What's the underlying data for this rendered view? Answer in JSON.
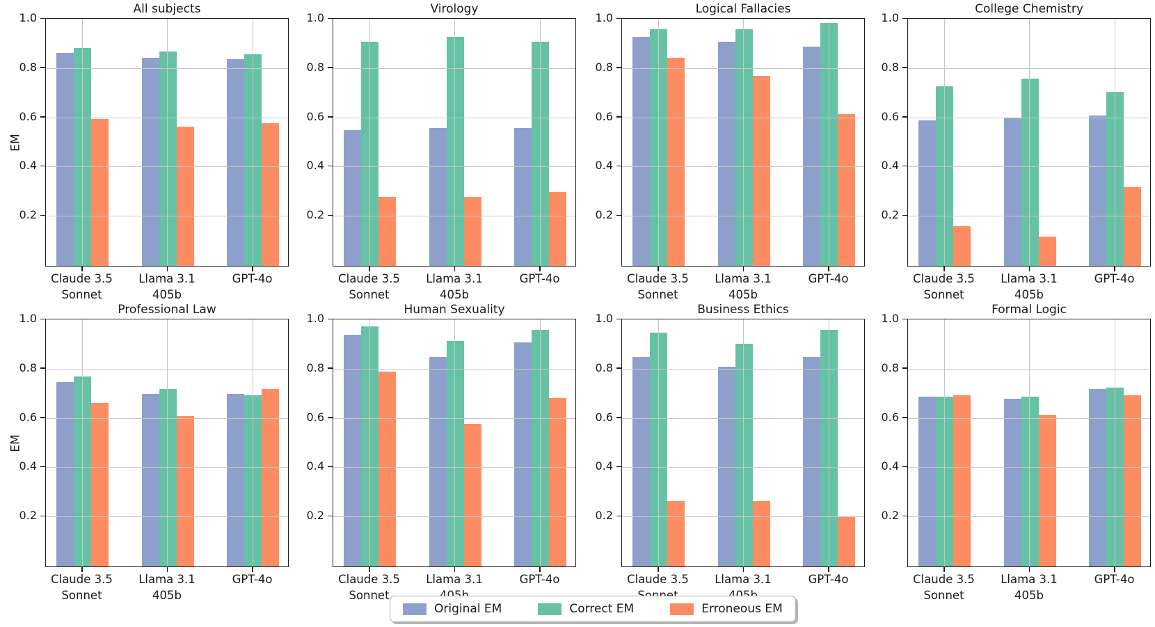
{
  "figure": {
    "ylabel": "EM",
    "ytick_labels": [
      "1.0",
      "0.8",
      "0.6",
      "0.4",
      "0.2"
    ],
    "ytick_values": [
      1.0,
      0.8,
      0.6,
      0.4,
      0.2
    ],
    "models": [
      {
        "lines": [
          "Claude 3.5",
          "Sonnet"
        ]
      },
      {
        "lines": [
          "Llama 3.1",
          "405b"
        ]
      },
      {
        "lines": [
          "GPT-4o"
        ]
      }
    ]
  },
  "legend": {
    "items": [
      {
        "label": "Original EM",
        "color": "#8da0cb"
      },
      {
        "label": "Correct EM",
        "color": "#66c2a5"
      },
      {
        "label": "Erroneous EM",
        "color": "#fc8d62"
      }
    ]
  },
  "chart_data": [
    {
      "type": "bar",
      "title": "All subjects",
      "categories": [
        "Claude 3.5 Sonnet",
        "Llama 3.1 405b",
        "GPT-4o"
      ],
      "series": [
        {
          "name": "Original EM",
          "values": [
            0.865,
            0.845,
            0.84
          ]
        },
        {
          "name": "Correct EM",
          "values": [
            0.885,
            0.87,
            0.86
          ]
        },
        {
          "name": "Erroneous EM",
          "values": [
            0.595,
            0.565,
            0.58
          ]
        }
      ],
      "ylabel": "EM",
      "ylim": [
        0,
        1.0
      ],
      "yticks": [
        0.2,
        0.4,
        0.6,
        0.8,
        1.0
      ],
      "grid": true,
      "legend_position": "bottom-center"
    },
    {
      "type": "bar",
      "title": "Virology",
      "categories": [
        "Claude 3.5 Sonnet",
        "Llama 3.1 405b",
        "GPT-4o"
      ],
      "series": [
        {
          "name": "Original EM",
          "values": [
            0.55,
            0.56,
            0.56
          ]
        },
        {
          "name": "Correct EM",
          "values": [
            0.91,
            0.93,
            0.91
          ]
        },
        {
          "name": "Erroneous EM",
          "values": [
            0.28,
            0.28,
            0.3
          ]
        }
      ],
      "ylabel": "",
      "ylim": [
        0,
        1.0
      ],
      "yticks": [
        0.2,
        0.4,
        0.6,
        0.8,
        1.0
      ],
      "grid": true
    },
    {
      "type": "bar",
      "title": "Logical Fallacies",
      "categories": [
        "Claude 3.5 Sonnet",
        "Llama 3.1 405b",
        "GPT-4o"
      ],
      "series": [
        {
          "name": "Original EM",
          "values": [
            0.93,
            0.91,
            0.89
          ]
        },
        {
          "name": "Correct EM",
          "values": [
            0.96,
            0.96,
            0.985
          ]
        },
        {
          "name": "Erroneous EM",
          "values": [
            0.845,
            0.77,
            0.615
          ]
        }
      ],
      "ylabel": "",
      "ylim": [
        0,
        1.0
      ],
      "yticks": [
        0.2,
        0.4,
        0.6,
        0.8,
        1.0
      ],
      "grid": true
    },
    {
      "type": "bar",
      "title": "College Chemistry",
      "categories": [
        "Claude 3.5 Sonnet",
        "Llama 3.1 405b",
        "GPT-4o"
      ],
      "series": [
        {
          "name": "Original EM",
          "values": [
            0.59,
            0.6,
            0.61
          ]
        },
        {
          "name": "Correct EM",
          "values": [
            0.73,
            0.76,
            0.705
          ]
        },
        {
          "name": "Erroneous EM",
          "values": [
            0.16,
            0.12,
            0.32
          ]
        }
      ],
      "ylabel": "",
      "ylim": [
        0,
        1.0
      ],
      "yticks": [
        0.2,
        0.4,
        0.6,
        0.8,
        1.0
      ],
      "grid": true
    },
    {
      "type": "bar",
      "title": "Professional Law",
      "categories": [
        "Claude 3.5 Sonnet",
        "Llama 3.1 405b",
        "GPT-4o"
      ],
      "series": [
        {
          "name": "Original EM",
          "values": [
            0.75,
            0.7,
            0.7
          ]
        },
        {
          "name": "Correct EM",
          "values": [
            0.77,
            0.72,
            0.695
          ]
        },
        {
          "name": "Erroneous EM",
          "values": [
            0.665,
            0.61,
            0.72
          ]
        }
      ],
      "ylabel": "EM",
      "ylim": [
        0,
        1.0
      ],
      "yticks": [
        0.2,
        0.4,
        0.6,
        0.8,
        1.0
      ],
      "grid": true
    },
    {
      "type": "bar",
      "title": "Human Sexuality",
      "categories": [
        "Claude 3.5 Sonnet",
        "Llama 3.1 405b",
        "GPT-4o"
      ],
      "series": [
        {
          "name": "Original EM",
          "values": [
            0.94,
            0.85,
            0.91
          ]
        },
        {
          "name": "Correct EM",
          "values": [
            0.975,
            0.915,
            0.96
          ]
        },
        {
          "name": "Erroneous EM",
          "values": [
            0.79,
            0.58,
            0.685
          ]
        }
      ],
      "ylabel": "",
      "ylim": [
        0,
        1.0
      ],
      "yticks": [
        0.2,
        0.4,
        0.6,
        0.8,
        1.0
      ],
      "grid": true
    },
    {
      "type": "bar",
      "title": "Business Ethics",
      "categories": [
        "Claude 3.5 Sonnet",
        "Llama 3.1 405b",
        "GPT-4o"
      ],
      "series": [
        {
          "name": "Original EM",
          "values": [
            0.85,
            0.81,
            0.85
          ]
        },
        {
          "name": "Correct EM",
          "values": [
            0.95,
            0.905,
            0.96
          ]
        },
        {
          "name": "Erroneous EM",
          "values": [
            0.265,
            0.265,
            0.2
          ]
        }
      ],
      "ylabel": "",
      "ylim": [
        0,
        1.0
      ],
      "yticks": [
        0.2,
        0.4,
        0.6,
        0.8,
        1.0
      ],
      "grid": true
    },
    {
      "type": "bar",
      "title": "Formal Logic",
      "categories": [
        "Claude 3.5 Sonnet",
        "Llama 3.1 405b",
        "GPT-4o"
      ],
      "series": [
        {
          "name": "Original EM",
          "values": [
            0.69,
            0.68,
            0.72
          ]
        },
        {
          "name": "Correct EM",
          "values": [
            0.69,
            0.69,
            0.725
          ]
        },
        {
          "name": "Erroneous EM",
          "values": [
            0.695,
            0.615,
            0.695
          ]
        }
      ],
      "ylabel": "",
      "ylim": [
        0,
        1.0
      ],
      "yticks": [
        0.2,
        0.4,
        0.6,
        0.8,
        1.0
      ],
      "grid": true
    }
  ]
}
